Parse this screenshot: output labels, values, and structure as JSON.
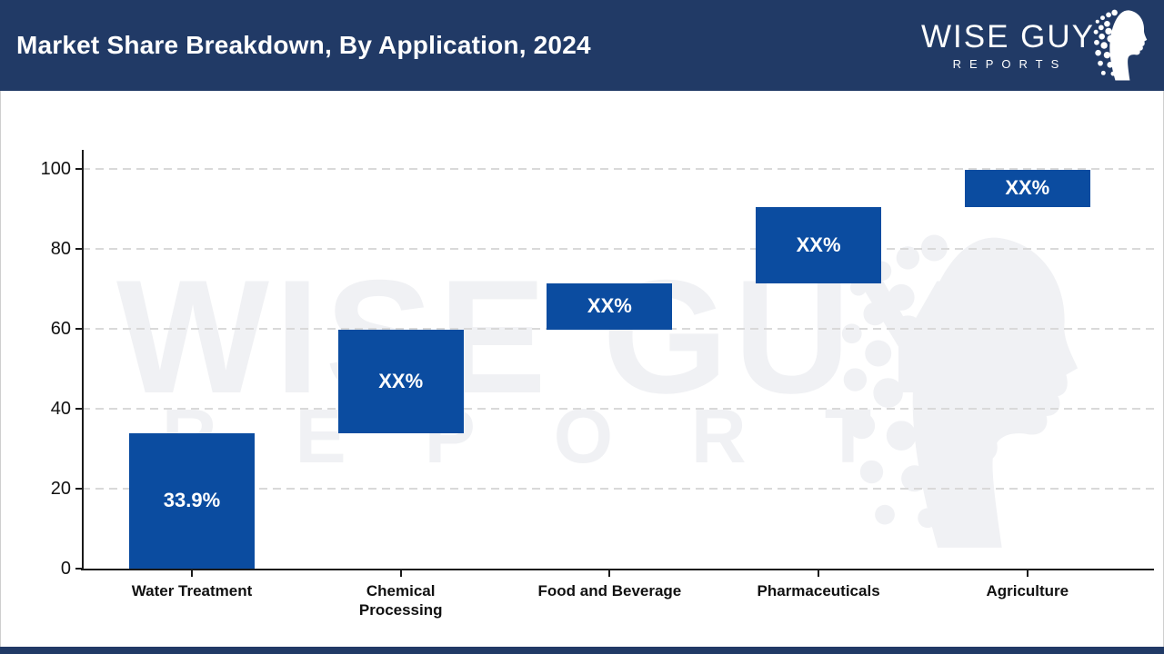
{
  "header": {
    "title": "Market Share Breakdown, By Application, 2024"
  },
  "logo": {
    "line1": "WISE GUY",
    "line2": "REPORTS",
    "head_icon": "dotted-head-profile"
  },
  "watermark": {
    "line1": "WISE GUY",
    "line2": "REPORTS",
    "head_icon": "dotted-head-profile"
  },
  "colors": {
    "header_bg": "#213A66",
    "bar_fill": "#0B4CA0",
    "bar_label": "#ffffff",
    "gridline": "#d9d9d9",
    "axis": "#1a1a1a",
    "watermark": "#f0f1f4",
    "footer_bg": "#213A66"
  },
  "chart_data": {
    "type": "bar",
    "subtype": "waterfall",
    "title": "Market Share Breakdown, By Application, 2024",
    "xlabel": "",
    "ylabel": "",
    "categories": [
      "Water Treatment",
      "Chemical\nProcessing",
      "Food and Beverage",
      "Pharmaceuticals",
      "Agriculture"
    ],
    "segments": [
      {
        "category": "Water Treatment",
        "start": 0,
        "end": 33.9,
        "label": "33.9%"
      },
      {
        "category": "Chemical Processing",
        "start": 33.9,
        "end": 59.8,
        "label": "XX%"
      },
      {
        "category": "Food and Beverage",
        "start": 59.8,
        "end": 71.4,
        "label": "XX%"
      },
      {
        "category": "Pharmaceuticals",
        "start": 71.4,
        "end": 90.5,
        "label": "XX%"
      },
      {
        "category": "Agriculture",
        "start": 90.5,
        "end": 99.8,
        "label": "XX%"
      }
    ],
    "yticks": [
      0,
      20,
      40,
      60,
      80,
      100
    ],
    "ylim": [
      0,
      105
    ],
    "grid": true,
    "grid_style": "dashed",
    "legend": "none",
    "note": "XX% labels are redacted placeholder values in the source image"
  }
}
